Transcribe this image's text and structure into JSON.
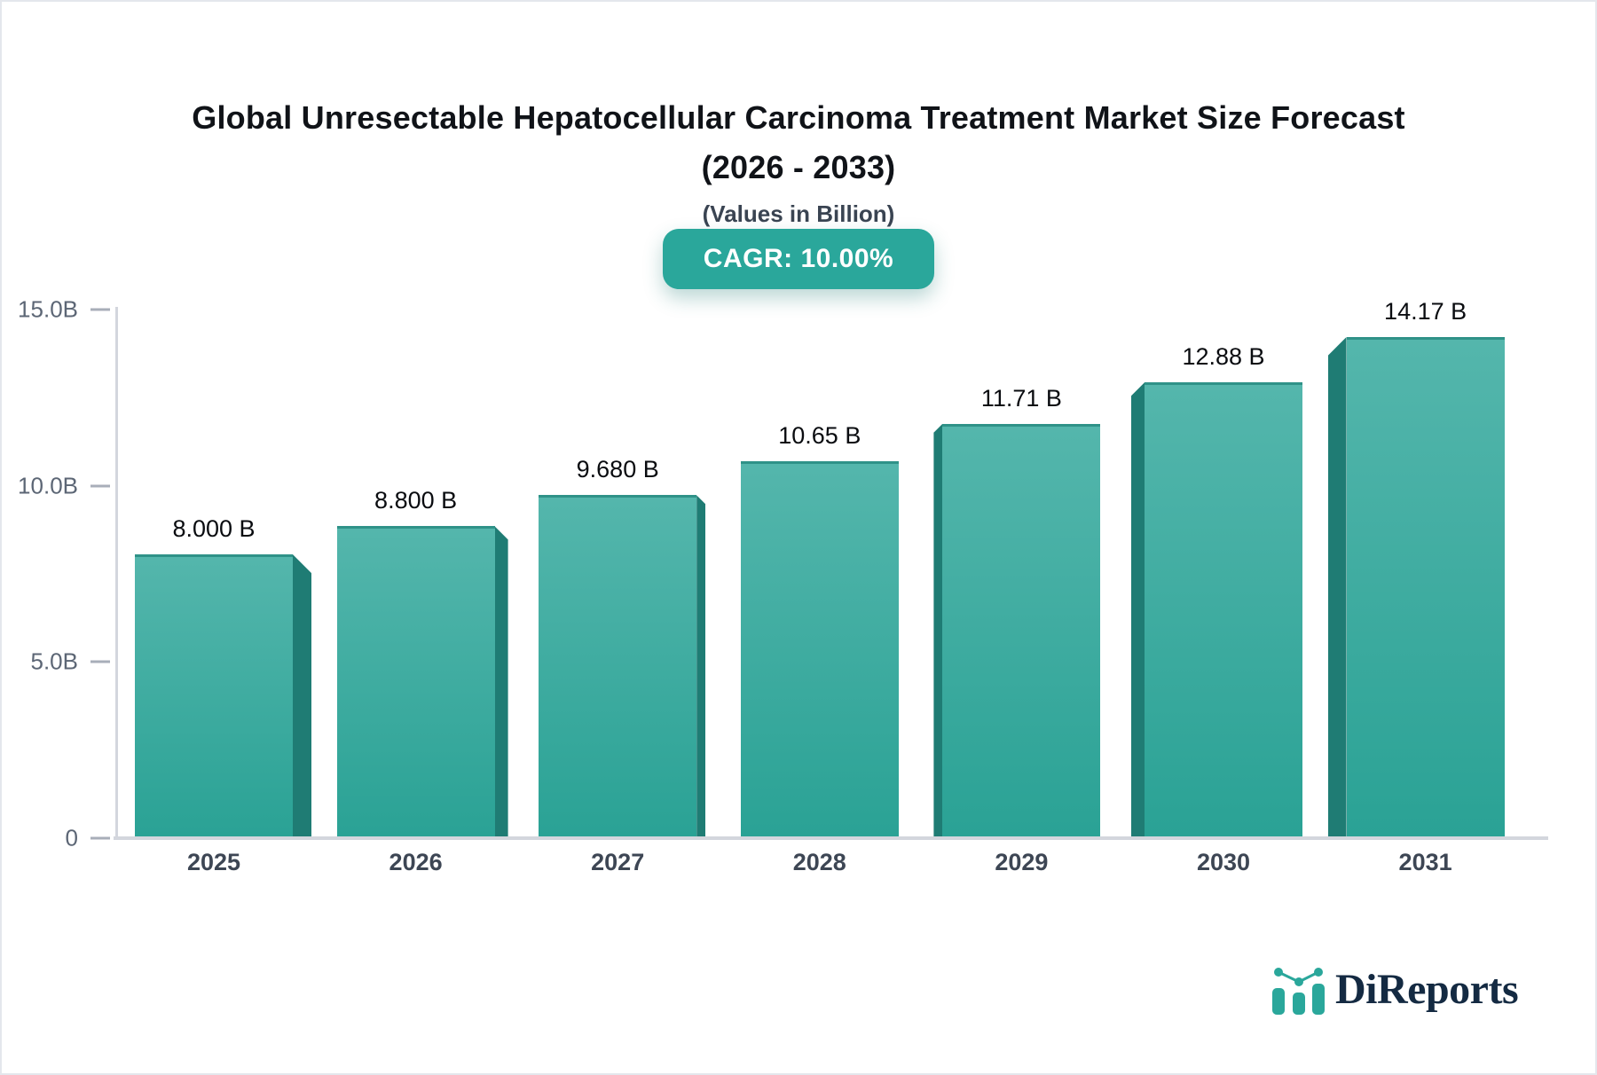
{
  "header": {
    "title_line1": "Global Unresectable Hepatocellular Carcinoma Treatment Market Size Forecast",
    "title_line2": "(2026 - 2033)",
    "subtitle": "(Values in Billion)",
    "cagr_badge": "CAGR: 10.00%"
  },
  "chart_data": {
    "type": "bar",
    "title": "Global Unresectable Hepatocellular Carcinoma Treatment Market Size Forecast (2026 - 2033)",
    "subtitle": "(Values in Billion)",
    "cagr_percent": 10.0,
    "categories": [
      "2025",
      "2026",
      "2027",
      "2028",
      "2029",
      "2030",
      "2031"
    ],
    "values": [
      8.0,
      8.8,
      9.68,
      10.65,
      11.71,
      12.88,
      14.17
    ],
    "value_labels": [
      "8.000 B",
      "8.800 B",
      "9.680 B",
      "10.65 B",
      "11.71 B",
      "12.88 B",
      "14.17 B"
    ],
    "unit": "Billion",
    "xlabel": "",
    "ylabel": "",
    "ylim": [
      0,
      15
    ],
    "yticks": [
      {
        "value": 0,
        "label": "0"
      },
      {
        "value": 5,
        "label": "5.0B"
      },
      {
        "value": 10,
        "label": "10.0B"
      },
      {
        "value": 15,
        "label": "15.0B"
      }
    ],
    "grid": false,
    "legend": "none",
    "bar_style": "3d-extruded, perspective toward center bar"
  },
  "colors": {
    "bar_face_top": "#54b6ac",
    "bar_face_bottom": "#2aa295",
    "bar_face_border_top": "#2f9288",
    "bar_side_dark": "#1f7c74",
    "badge_bg": "#2aa79b",
    "axis_gray": "#d3d6dd",
    "value_label": "#0a0c10",
    "category_label": "#3d4654",
    "ytick_label": "#5c6675",
    "logo_navy": "#142a42",
    "logo_teal": "#2aa79b"
  },
  "logo": {
    "text": "DiReports",
    "icon": "bar-chart-logo-icon"
  }
}
